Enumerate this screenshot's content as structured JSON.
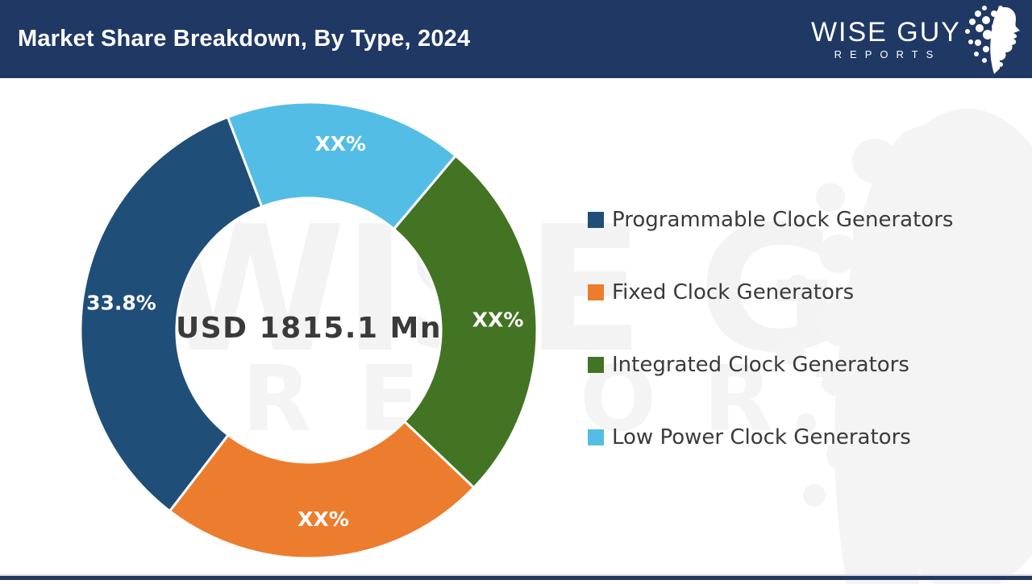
{
  "header": {
    "title": "Market Share Breakdown, By Type, 2024"
  },
  "logo": {
    "line1": "WISE GUY",
    "line2": "REPORTS"
  },
  "watermark": {
    "line1": "WISE GUY",
    "line2": "REPORTS"
  },
  "colors": {
    "header_bg": "#1F3864",
    "footer_bg": "#1F3864",
    "legend_text": "#3a3a3a",
    "center_text": "#3a3a3a"
  },
  "chart_data": {
    "type": "pie",
    "donut": true,
    "title": "Market Share Breakdown, By Type, 2024",
    "center_text": "USD 1815.1 Mn",
    "start_angle_deg": 110.8,
    "counterclockwise": true,
    "legend_position": "right",
    "segments": [
      {
        "id": "programmable",
        "name": "Programmable Clock Generators",
        "label": "33.8%",
        "value_pct": 33.8,
        "color": "#1F4E79"
      },
      {
        "id": "fixed",
        "name": "Fixed Clock Generators",
        "label": "XX%",
        "value_pct": 23.3,
        "color": "#EC7D2F"
      },
      {
        "id": "integrated",
        "name": "Integrated Clock Generators",
        "label": "XX%",
        "value_pct": 26.0,
        "color": "#437424"
      },
      {
        "id": "low-power",
        "name": "Low Power Clock Generators",
        "label": "XX%",
        "value_pct": 16.9,
        "color": "#54BDE6"
      }
    ]
  }
}
